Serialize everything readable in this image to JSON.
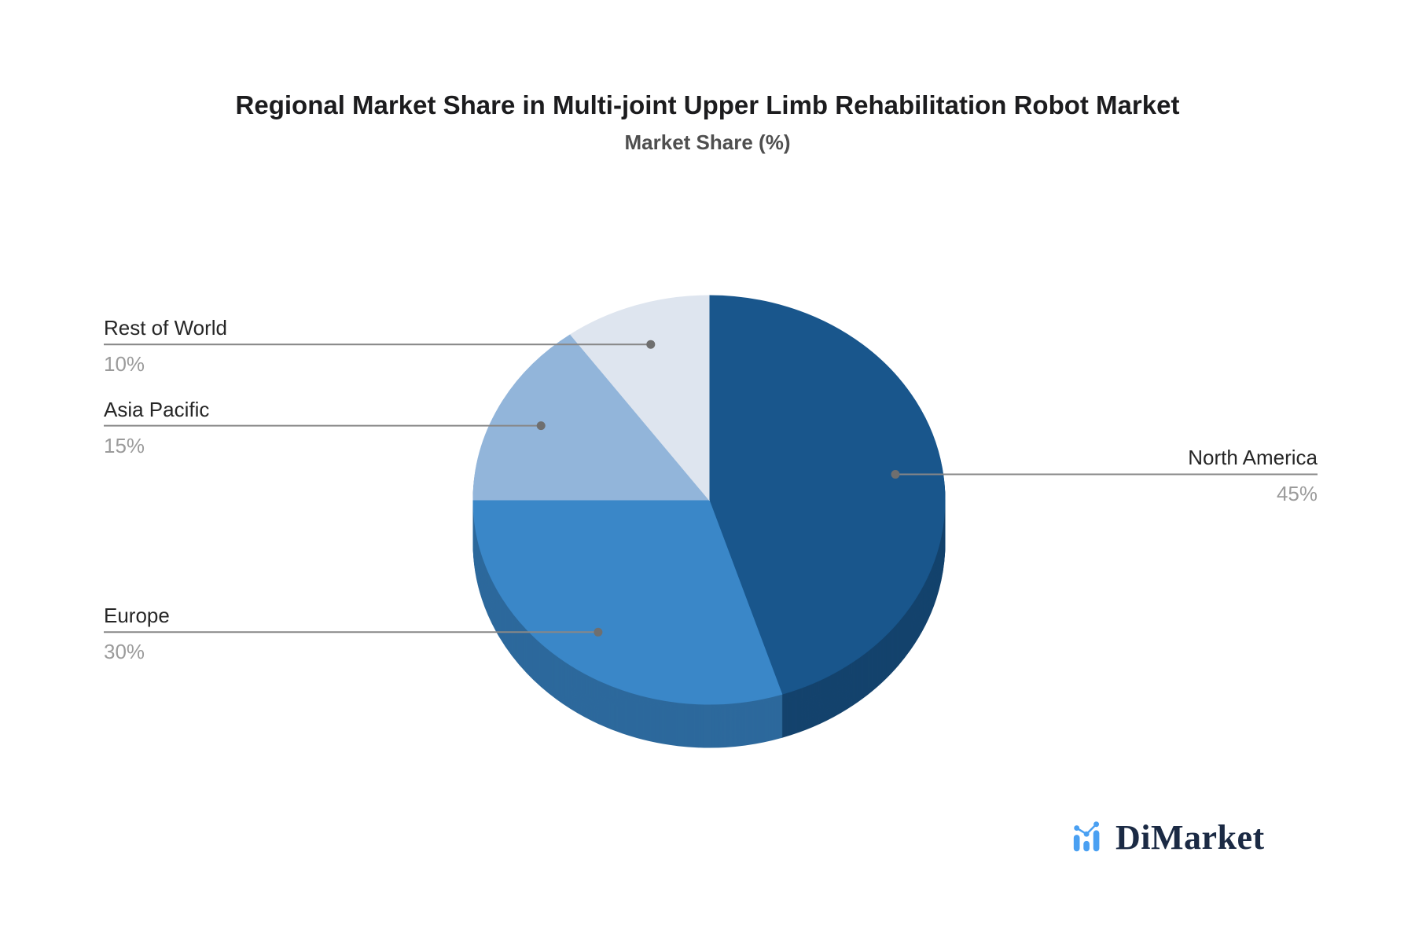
{
  "chart_data": {
    "type": "pie",
    "title": "Regional Market Share in Multi-joint Upper Limb Rehabilitation Robot Market",
    "subtitle": "Market Share (%)",
    "unit": "%",
    "style_3d": true,
    "start_angle": "top",
    "direction": "clockwise",
    "legend_position": "none",
    "background": "#FFFFFF",
    "slices": [
      {
        "name": "North America",
        "value": 45,
        "label": "45%",
        "color": "#19568C"
      },
      {
        "name": "Europe",
        "value": 30,
        "label": "30%",
        "color": "#3A87C8"
      },
      {
        "name": "Asia Pacific",
        "value": 15,
        "label": "15%",
        "color": "#92B5DA"
      },
      {
        "name": "Rest of World",
        "value": 10,
        "label": "10%",
        "color": "#DEE5EF"
      }
    ],
    "label_style": {
      "name_color": "#262626",
      "value_color": "#9B9B9B",
      "line_color": "#878787",
      "dot_color": "#6F6F6F"
    }
  },
  "branding": {
    "logo_text": "DiMarket",
    "logo_text_color": "#1B2A44",
    "logo_icon": "bar-chart-with-trend-dots-icon",
    "logo_icon_color": "#4AA0F2"
  }
}
